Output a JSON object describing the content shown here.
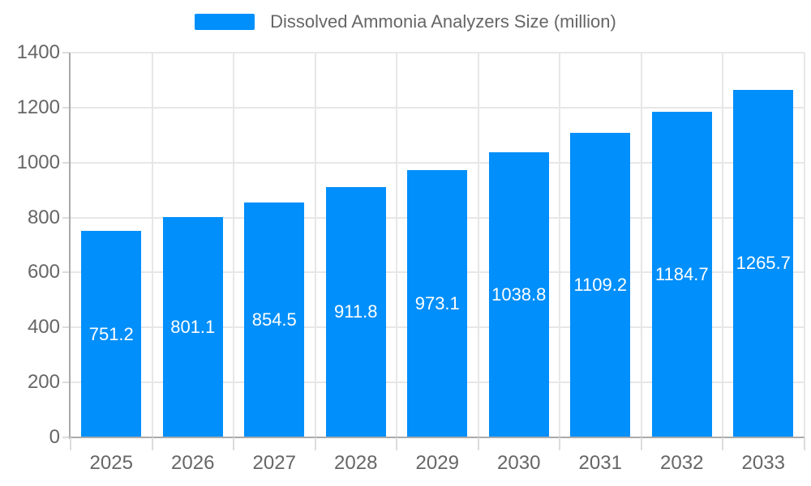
{
  "legend": {
    "label": "Dissolved Ammonia Analyzers Size (million)"
  },
  "chart_data": {
    "type": "bar",
    "title": "Dissolved Ammonia Analyzers Size (million)",
    "categories": [
      "2025",
      "2026",
      "2027",
      "2028",
      "2029",
      "2030",
      "2031",
      "2032",
      "2033"
    ],
    "series": [
      {
        "name": "Dissolved Ammonia Analyzers Size (million)",
        "values": [
          751.2,
          801.1,
          854.5,
          911.8,
          973.1,
          1038.8,
          1109.2,
          1184.7,
          1265.7
        ]
      }
    ],
    "data_labels": [
      "751.2",
      "801.1",
      "854.5",
      "911.8",
      "973.1",
      "1038.8",
      "1109.2",
      "1184.7",
      "1265.7"
    ],
    "xlabel": "",
    "ylabel": "",
    "ylim": [
      0,
      1400
    ],
    "ytick_step": 200,
    "ytick_labels": [
      "0",
      "200",
      "400",
      "600",
      "800",
      "1000",
      "1200",
      "1400"
    ],
    "grid": true,
    "legend_position": "top",
    "colors": {
      "bar": "#008FFB",
      "axis_text": "#666666",
      "bar_label_text": "#ffffff",
      "gridline": "#e7e7e7",
      "tick": "#dcdcdc",
      "axis_line": "#aaaaaa",
      "background": "#ffffff"
    }
  }
}
